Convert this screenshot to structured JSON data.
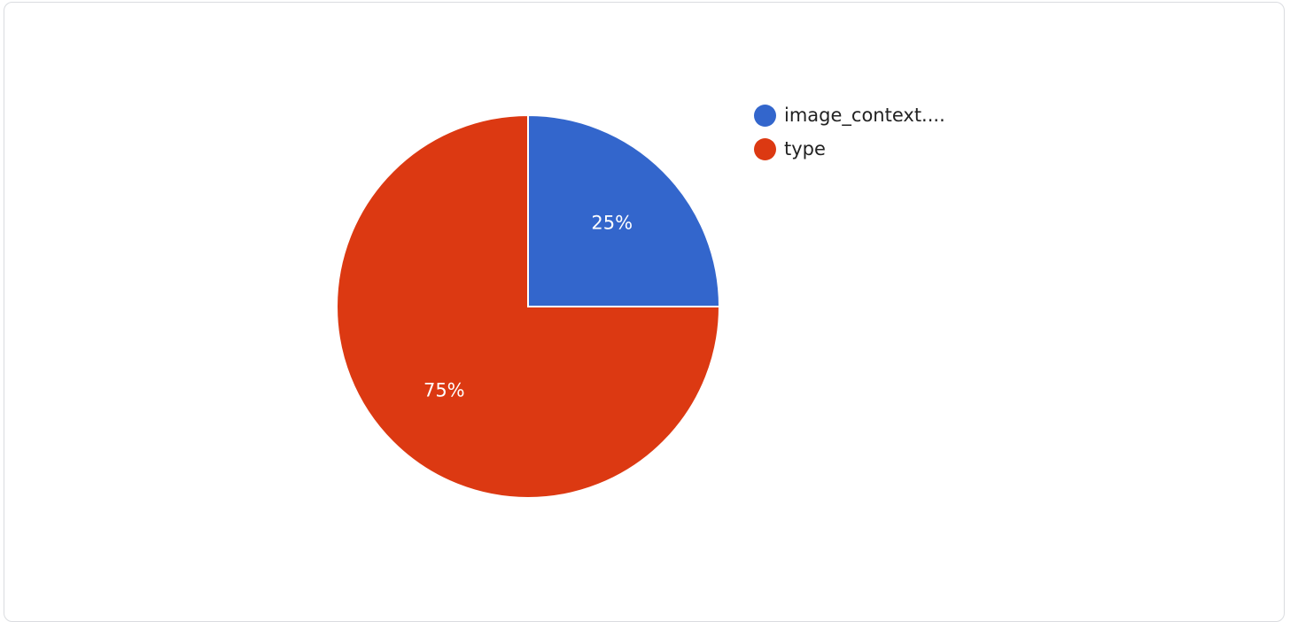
{
  "chart_data": {
    "type": "pie",
    "title": "",
    "series": [
      {
        "name": "image_context....",
        "value": 25,
        "label": "25%",
        "color": "#3366cc"
      },
      {
        "name": "type",
        "value": 75,
        "label": "75%",
        "color": "#dc3912"
      }
    ],
    "legend_position": "right"
  }
}
